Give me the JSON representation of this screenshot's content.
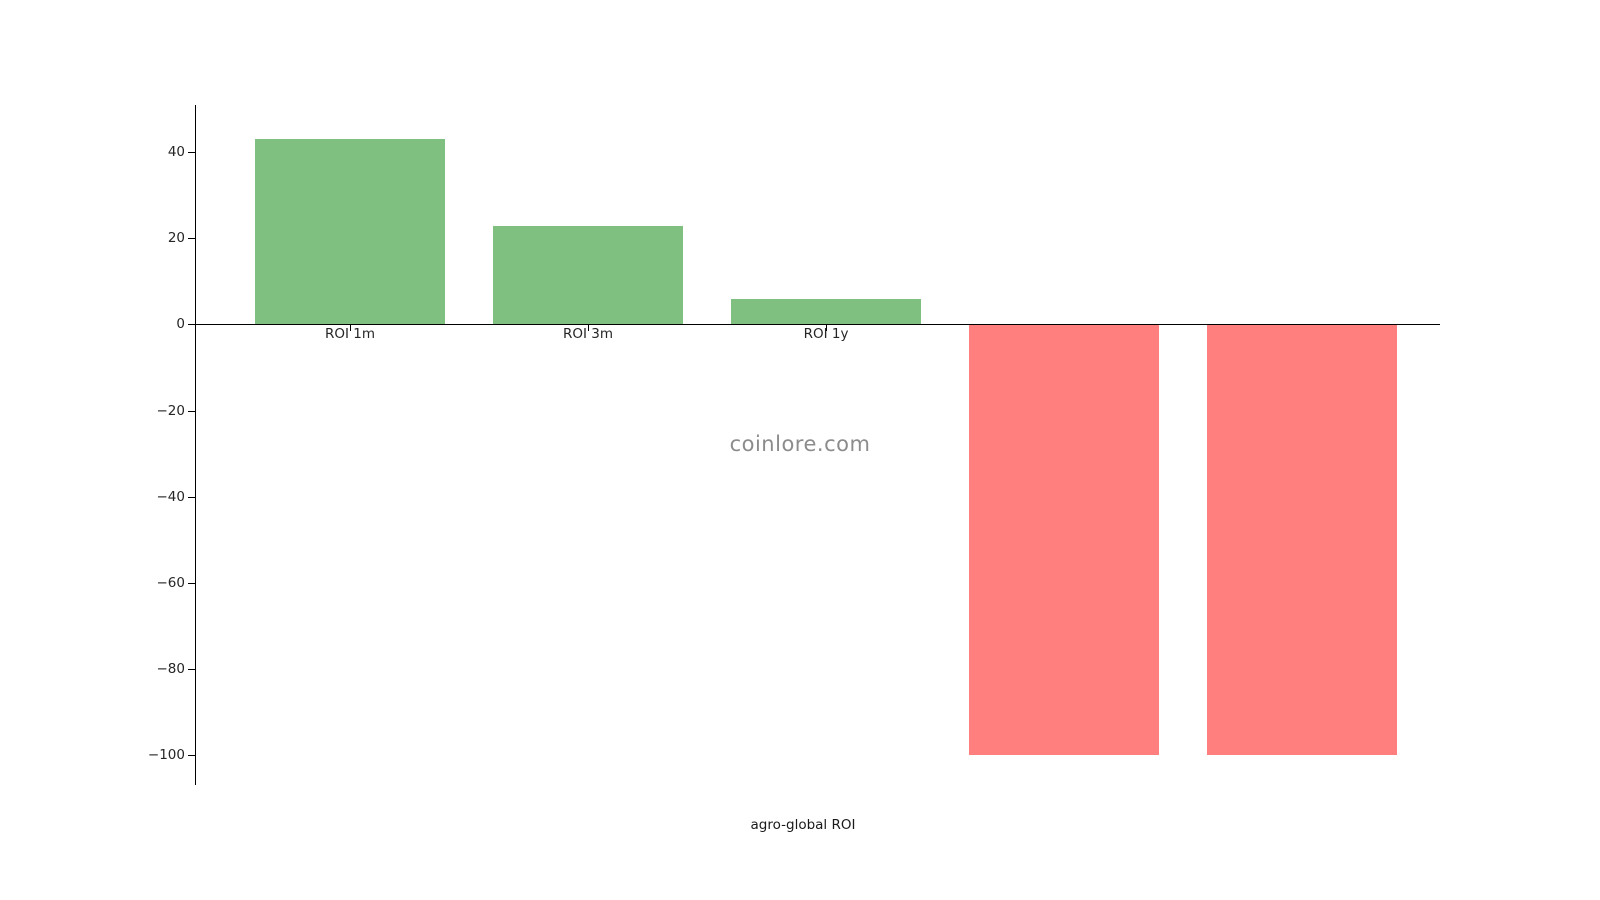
{
  "figure": {
    "background": "#ffffff"
  },
  "watermark": {
    "text": "coinlore.com",
    "color": "#8c8c8c"
  },
  "chart_data": {
    "type": "bar",
    "title": "agro-global ROI",
    "xlabel": "agro-global ROI",
    "ylabel": "",
    "categories": [
      "ROI 1m",
      "ROI 3m",
      "ROI 1y",
      "",
      ""
    ],
    "values": [
      43,
      23,
      6,
      -100,
      -100
    ],
    "bar_colors": [
      "#7fbf7f",
      "#7fbf7f",
      "#7fbf7f",
      "#ff7f7f",
      "#ff7f7f"
    ],
    "positive_color": "#7fbf7f",
    "negative_color": "#ff7f7f",
    "axis_color": "#000000",
    "text_color": "#262626",
    "yticks": [
      40,
      20,
      0,
      -20,
      -40,
      -60,
      -80,
      -100
    ],
    "ytick_labels": [
      "40",
      "20",
      "0",
      "−20",
      "−40",
      "−60",
      "−80",
      "−100"
    ],
    "ylim": [
      -107,
      51
    ],
    "grid": false,
    "legend": false,
    "watermark": "coinlore.com"
  }
}
